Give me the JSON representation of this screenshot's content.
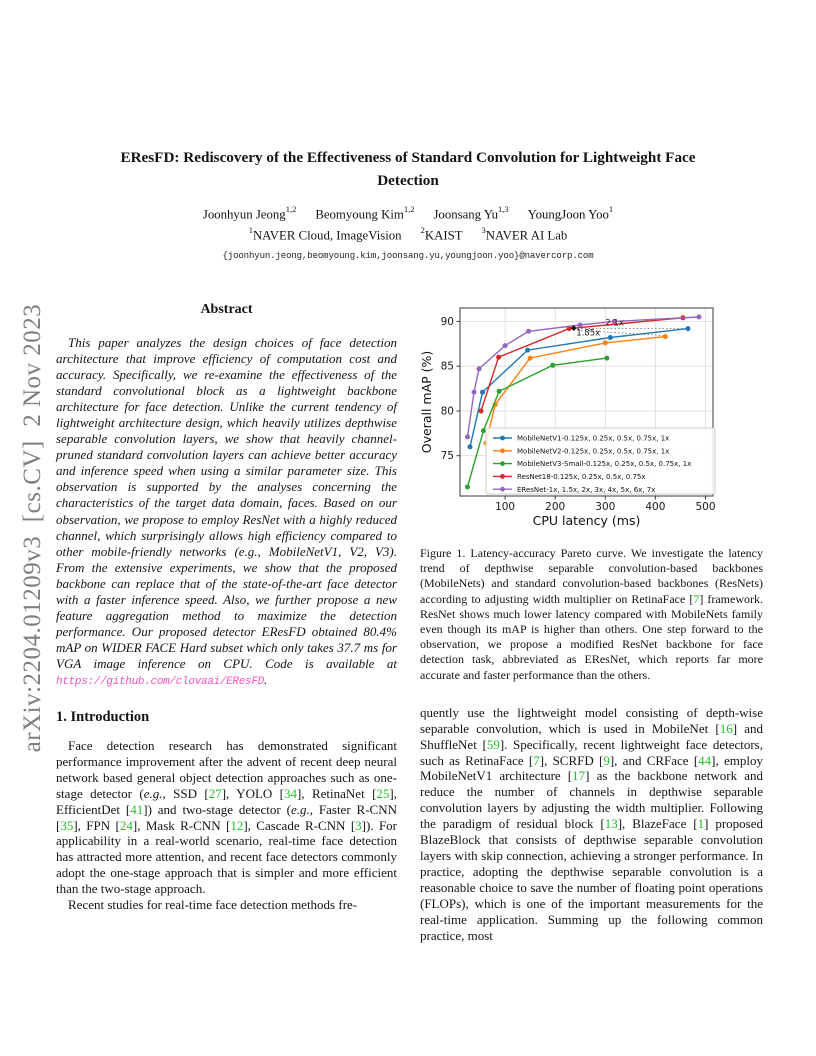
{
  "sidebar": {
    "arxiv_label": "arXiv:2204.01209v3  [cs.CV]  2 Nov 2023"
  },
  "colors": {
    "citation": "#22c32a",
    "link": "#f653be",
    "watermark": "#7f7f7f"
  },
  "header": {
    "title": "EResFD: Rediscovery of the Effectiveness of Standard Convolution for Lightweight Face Detection",
    "authors_segments": [
      [
        "p",
        "Joonhyun Jeong"
      ],
      [
        "s",
        "1,2"
      ],
      [
        "g",
        ""
      ],
      [
        "p",
        "Beomyoung Kim"
      ],
      [
        "s",
        "1,2"
      ],
      [
        "g",
        ""
      ],
      [
        "p",
        "Joonsang Yu"
      ],
      [
        "s",
        "1,3"
      ],
      [
        "g",
        ""
      ],
      [
        "p",
        "YoungJoon Yoo"
      ],
      [
        "s",
        "1"
      ]
    ],
    "affiliations_segments": [
      [
        "s",
        "1"
      ],
      [
        "p",
        "NAVER Cloud, ImageVision"
      ],
      [
        "g",
        ""
      ],
      [
        "s",
        "2"
      ],
      [
        "p",
        "KAIST"
      ],
      [
        "g",
        ""
      ],
      [
        "s",
        "3"
      ],
      [
        "p",
        "NAVER AI Lab"
      ]
    ],
    "email": "{joonhyun.jeong,beomyoung.kim,joonsang.yu,youngjoon.yoo}@navercorp.com"
  },
  "left_column": {
    "abstract_heading": "Abstract",
    "abstract_segments": [
      [
        "p",
        "This paper analyzes the design choices of face detection architecture that improve efficiency of computation cost and accuracy. Specifically, we re-examine the effectiveness of the standard convolutional block as a lightweight backbone architecture for face detection. Unlike the current tendency of lightweight architecture design, which heavily utilizes depthwise separable convolution layers, we show that heavily channel-pruned standard convolution layers can achieve better accuracy and inference speed when using a similar parameter size. This observation is supported by the analyses concerning the characteristics of the target data domain, faces. Based on our observation, we propose to employ ResNet with a highly reduced channel, which surprisingly allows high efficiency compared to other mobile-friendly networks (e.g., MobileNetV1, V2, V3). From the extensive experiments, we show that the proposed backbone can replace that of the state-of-the-art face detector with a faster inference speed. Also, we further propose a new feature aggregation method to maximize the detection performance. Our proposed detector EResFD obtained 80.4% mAP on WIDER FACE Hard subset which only takes 37.7 ms for VGA image inference on CPU. Code is available at "
      ],
      [
        "l",
        "https://github.com/clovaai/EResFD"
      ],
      [
        "p",
        "."
      ]
    ],
    "intro_heading": "1. Introduction",
    "intro_p1_segments": [
      [
        "p",
        "Face detection research has demonstrated significant performance improvement after the advent of recent deep neural network based general object detection approaches such as one-stage detector ("
      ],
      [
        "i",
        "e.g."
      ],
      [
        "p",
        ", SSD ["
      ],
      [
        "c",
        "27"
      ],
      [
        "p",
        "], YOLO ["
      ],
      [
        "c",
        "34"
      ],
      [
        "p",
        "], RetinaNet ["
      ],
      [
        "c",
        "25"
      ],
      [
        "p",
        "], EfficientDet ["
      ],
      [
        "c",
        "41"
      ],
      [
        "p",
        "]) and two-stage detector ("
      ],
      [
        "i",
        "e.g."
      ],
      [
        "p",
        ", Faster R-CNN ["
      ],
      [
        "c",
        "35"
      ],
      [
        "p",
        "], FPN ["
      ],
      [
        "c",
        "24"
      ],
      [
        "p",
        "], Mask R-CNN ["
      ],
      [
        "c",
        "12"
      ],
      [
        "p",
        "], Cascade R-CNN ["
      ],
      [
        "c",
        "3"
      ],
      [
        "p",
        "]). For applicability in a real-world scenario, real-time face detection has attracted more attention, and recent face detectors commonly adopt the one-stage approach that is simpler and more efficient than the two-stage approach."
      ]
    ],
    "intro_p2_segments": [
      [
        "p",
        "Recent studies for real-time face detection methods fre-"
      ]
    ]
  },
  "figure": {
    "caption_segments": [
      [
        "p",
        "Figure 1.  Latency-accuracy Pareto curve.  We investigate the latency trend of depthwise separable convolution-based backbones (MobileNets) and standard convolution-based backbones (ResNets) according to adjusting width multiplier on RetinaFace ["
      ],
      [
        "c",
        "7"
      ],
      [
        "p",
        "] framework. ResNet shows much lower latency compared with MobileNets family even though its mAP is higher than others. One step forward to the observation, we propose a modified ResNet backbone for face detection task, abbreviated as EResNet, which reports far more accurate and faster performance than the others."
      ]
    ]
  },
  "right_column": {
    "p1_segments": [
      [
        "p",
        "quently use the lightweight model consisting of depth-wise separable convolution, which is used in MobileNet ["
      ],
      [
        "c",
        "16"
      ],
      [
        "p",
        "] and ShuffleNet ["
      ],
      [
        "c",
        "59"
      ],
      [
        "p",
        "]. Specifically, recent lightweight face detectors, such as RetinaFace ["
      ],
      [
        "c",
        "7"
      ],
      [
        "p",
        "], SCRFD ["
      ],
      [
        "c",
        "9"
      ],
      [
        "p",
        "], and CRFace ["
      ],
      [
        "c",
        "44"
      ],
      [
        "p",
        "], employ MobileNetV1 architecture ["
      ],
      [
        "c",
        "17"
      ],
      [
        "p",
        "] as the backbone network and reduce the number of channels in depthwise separable convolution layers by adjusting the width multiplier. Following the paradigm of residual block ["
      ],
      [
        "c",
        "13"
      ],
      [
        "p",
        "], BlazeFace ["
      ],
      [
        "c",
        "1"
      ],
      [
        "p",
        "] proposed BlazeBlock that consists of depthwise separable convolution layers with skip connection, achieving a stronger performance. In practice, adopting the depthwise separable convolution is a reasonable choice to save the number of floating point operations (FLOPs), which is one of the important measurements for the real-time application. Summing up the following common practice, most"
      ]
    ]
  },
  "chart_data": {
    "type": "line",
    "title": "",
    "xlabel": "CPU latency (ms)",
    "ylabel": "Overall mAP (%)",
    "xlim": [
      10,
      515
    ],
    "ylim": [
      70.5,
      91.5
    ],
    "xticks": [
      100,
      200,
      300,
      400,
      500
    ],
    "yticks": [
      75,
      80,
      85,
      90
    ],
    "grid": true,
    "legend_position": "lower right",
    "series": [
      {
        "name": "MobileNetV1-0.125x, 0.25x, 0.5x, 0.75x, 1x",
        "color": "#1f77b4",
        "points": [
          [
            30,
            76.0
          ],
          [
            55,
            82.1
          ],
          [
            145,
            86.8
          ],
          [
            310,
            88.2
          ],
          [
            465,
            89.2
          ]
        ]
      },
      {
        "name": "MobileNetV2-0.125x, 0.25x, 0.5x, 0.75x, 1x",
        "color": "#ff7f0e",
        "points": [
          [
            62,
            76.4
          ],
          [
            80,
            80.7
          ],
          [
            150,
            85.9
          ],
          [
            300,
            87.6
          ],
          [
            420,
            88.3
          ]
        ]
      },
      {
        "name": "MobileNetV3-Small-0.125x, 0.25x, 0.5x, 0.75x, 1x",
        "color": "#2ca02c",
        "points": [
          [
            25,
            71.5
          ],
          [
            57,
            77.8
          ],
          [
            88,
            82.2
          ],
          [
            195,
            85.1
          ],
          [
            303,
            85.9
          ]
        ]
      },
      {
        "name": "ResNet18-0.125x, 0.25x, 0.5x, 0.75x",
        "color": "#d62728",
        "points": [
          [
            52,
            80.0
          ],
          [
            87,
            86.0
          ],
          [
            228,
            89.2
          ],
          [
            455,
            90.4
          ]
        ]
      },
      {
        "name": "EResNet-1x, 1.5x, 2x, 3x, 4x, 5x, 6x, 7x",
        "color": "#9467bd",
        "points": [
          [
            25,
            77.1
          ],
          [
            38,
            82.1
          ],
          [
            48,
            84.7
          ],
          [
            100,
            87.3
          ],
          [
            147,
            88.9
          ],
          [
            250,
            89.6
          ],
          [
            318,
            90.0
          ],
          [
            487,
            90.5
          ]
        ]
      }
    ],
    "annotations": [
      {
        "text": "1.85x",
        "x": 242,
        "y": 88.45
      },
      {
        "text": "2.1x",
        "x": 300,
        "y": 89.55
      }
    ],
    "dotted_lines": [
      {
        "from": [
          237,
          89.2
        ],
        "to": [
          468,
          89.2
        ]
      },
      {
        "from": [
          237,
          89.05
        ],
        "to": [
          425,
          88.4
        ]
      }
    ],
    "marker": {
      "x": 237,
      "y": 89.25
    }
  }
}
